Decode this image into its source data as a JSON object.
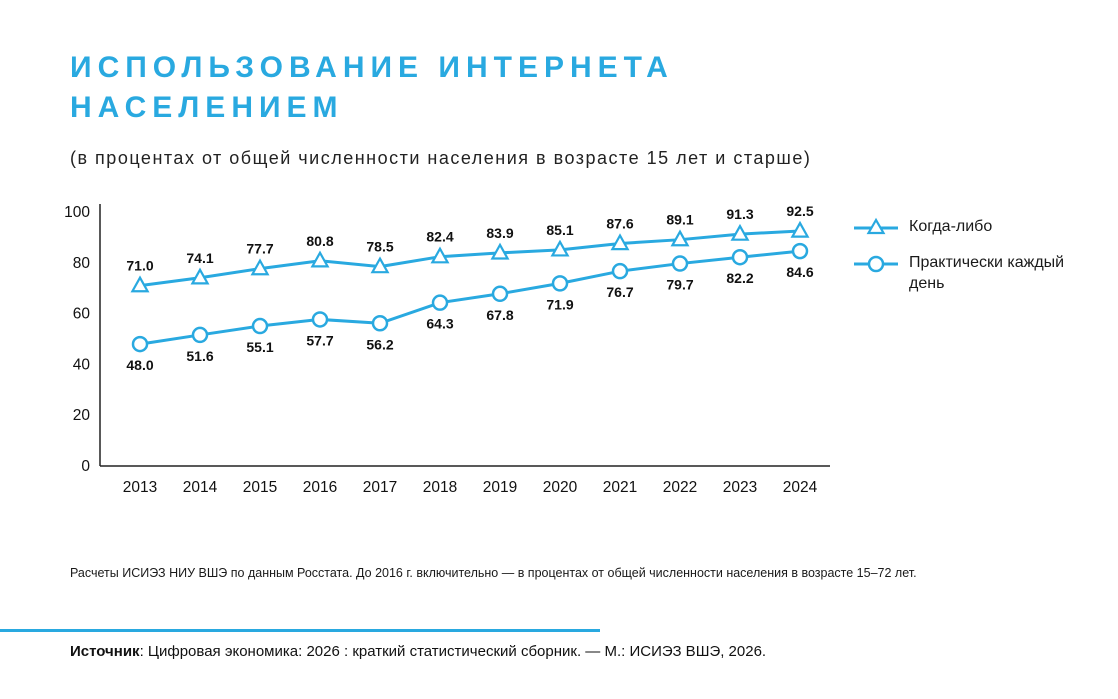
{
  "page": {
    "title_line1": "ИСПОЛЬЗОВАНИЕ ИНТЕРНЕТА",
    "title_line2": "НАСЕЛЕНИЕМ",
    "subtitle": "(в процентах от общей численности населения в возрасте 15 лет и старше)",
    "footnote": "Расчеты ИСИЭЗ НИУ ВШЭ по данным Росстата. До 2016 г. включительно — в процентах от общей численности населения в возрасте 15–72 лет.",
    "source_label": "Источник",
    "source_text": ": Цифровая экономика: 2026 : краткий статистический сборник. — М.: ИСИЭЗ ВШЭ, 2026."
  },
  "colors": {
    "accent": "#29A9E0",
    "label_text": "#111111",
    "axis": "#222222"
  },
  "chart_data": {
    "type": "line",
    "title": "ИСПОЛЬЗОВАНИЕ ИНТЕРНЕТА НАСЕЛЕНИЕМ",
    "subtitle": "(в процентах от общей численности населения в возрасте 15 лет и старше)",
    "categories": [
      2013,
      2014,
      2015,
      2016,
      2017,
      2018,
      2019,
      2020,
      2021,
      2022,
      2023,
      2024
    ],
    "series": [
      {
        "name": "Когда-либо",
        "marker": "triangle",
        "values": [
          71.0,
          74.1,
          77.7,
          80.8,
          78.5,
          82.4,
          83.9,
          85.1,
          87.6,
          89.1,
          91.3,
          92.5
        ]
      },
      {
        "name": "Практически каждый день",
        "marker": "circle",
        "values": [
          48.0,
          51.6,
          55.1,
          57.7,
          56.2,
          64.3,
          67.8,
          71.9,
          76.7,
          79.7,
          82.2,
          84.6
        ]
      }
    ],
    "xlabel": "",
    "ylabel": "",
    "ylim": [
      0,
      100
    ],
    "yticks": [
      0,
      20,
      40,
      60,
      80,
      100
    ],
    "grid": false,
    "legend_position": "right"
  }
}
